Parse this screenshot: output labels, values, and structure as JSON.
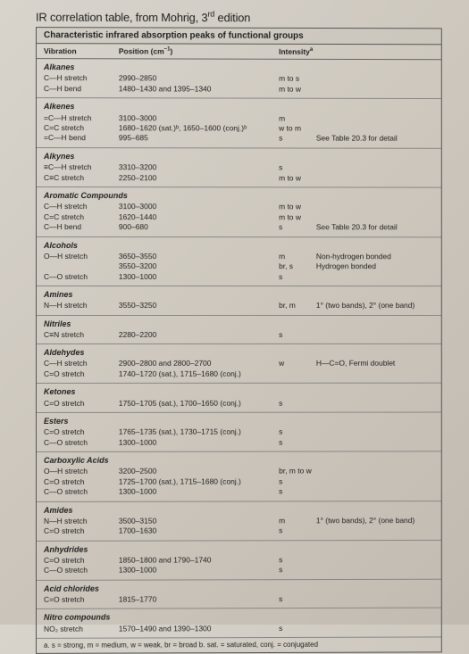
{
  "pageTitle": "IR correlation table, from Mohrig, 3",
  "pageTitleSuffix": "rd",
  "pageTitleEnd": " edition",
  "boxHeader": "Characteristic infrared absorption peaks of functional groups",
  "colVibration": "Vibration",
  "colPosition": "Position (cm",
  "colPositionSup": "−1",
  "colPositionEnd": ")",
  "colIntensity": "Intensity",
  "colIntensitySup": "a",
  "groups": [
    {
      "name": "Alkanes",
      "rows": [
        {
          "vib": "C—H stretch",
          "pos": "2990–2850",
          "int": "m to s",
          "note": ""
        },
        {
          "vib": "C—H bend",
          "pos": "1480–1430 and 1395–1340",
          "int": "m to w",
          "note": ""
        }
      ]
    },
    {
      "name": "Alkenes",
      "rows": [
        {
          "vib": "=C—H stretch",
          "pos": "3100–3000",
          "int": "m",
          "note": ""
        },
        {
          "vib": "C=C stretch",
          "pos": "1680–1620 (sat.)ᵇ, 1650–1600 (conj.)ᵇ",
          "int": "w to m",
          "note": ""
        },
        {
          "vib": "=C—H bend",
          "pos": "995–685",
          "int": "s",
          "note": "See Table 20.3 for detail"
        }
      ]
    },
    {
      "name": "Alkynes",
      "rows": [
        {
          "vib": "≡C—H stretch",
          "pos": "3310–3200",
          "int": "s",
          "note": ""
        },
        {
          "vib": "C≡C stretch",
          "pos": "2250–2100",
          "int": "m to w",
          "note": ""
        }
      ]
    },
    {
      "name": "Aromatic Compounds",
      "rows": [
        {
          "vib": "C—H stretch",
          "pos": "3100–3000",
          "int": "m to w",
          "note": ""
        },
        {
          "vib": "C=C stretch",
          "pos": "1620–1440",
          "int": "m to w",
          "note": ""
        },
        {
          "vib": "C—H bend",
          "pos": "900–680",
          "int": "s",
          "note": "See Table 20.3 for detail"
        }
      ]
    },
    {
      "name": "Alcohols",
      "rows": [
        {
          "vib": "O—H stretch",
          "pos": "3650–3550",
          "int": "m",
          "note": "Non-hydrogen bonded"
        },
        {
          "vib": "",
          "pos": "3550–3200",
          "int": "br, s",
          "note": "Hydrogen bonded"
        },
        {
          "vib": "C—O stretch",
          "pos": "1300–1000",
          "int": "s",
          "note": ""
        }
      ]
    },
    {
      "name": "Amines",
      "rows": [
        {
          "vib": "N—H stretch",
          "pos": "3550–3250",
          "int": "br, m",
          "note": "1° (two bands), 2° (one band)"
        }
      ]
    },
    {
      "name": "Nitriles",
      "rows": [
        {
          "vib": "C≡N stretch",
          "pos": "2280–2200",
          "int": "s",
          "note": ""
        }
      ]
    },
    {
      "name": "Aldehydes",
      "rows": [
        {
          "vib": "C—H stretch",
          "pos": "2900–2800 and 2800–2700",
          "int": "w",
          "note": "H—C=O, Fermi doublet"
        },
        {
          "vib": "C=O stretch",
          "pos": "1740–1720 (sat.), 1715–1680 (conj.)",
          "int": "",
          "note": ""
        }
      ]
    },
    {
      "name": "Ketones",
      "rows": [
        {
          "vib": "C=O stretch",
          "pos": "1750–1705 (sat.), 1700–1650 (conj.)",
          "int": "s",
          "note": ""
        }
      ]
    },
    {
      "name": "Esters",
      "rows": [
        {
          "vib": "C=O stretch",
          "pos": "1765–1735 (sat.), 1730–1715 (conj.)",
          "int": "s",
          "note": ""
        },
        {
          "vib": "C—O stretch",
          "pos": "1300–1000",
          "int": "s",
          "note": ""
        }
      ]
    },
    {
      "name": "Carboxylic Acids",
      "rows": [
        {
          "vib": "O—H stretch",
          "pos": "3200–2500",
          "int": "br, m to w",
          "note": ""
        },
        {
          "vib": "C=O stretch",
          "pos": "1725–1700 (sat.), 1715–1680 (conj.)",
          "int": "s",
          "note": ""
        },
        {
          "vib": "C—O stretch",
          "pos": "1300–1000",
          "int": "s",
          "note": ""
        }
      ]
    },
    {
      "name": "Amides",
      "rows": [
        {
          "vib": "N—H stretch",
          "pos": "3500–3150",
          "int": "m",
          "note": "1° (two bands), 2° (one band)"
        },
        {
          "vib": "C=O stretch",
          "pos": "1700–1630",
          "int": "s",
          "note": ""
        }
      ]
    },
    {
      "name": "Anhydrides",
      "rows": [
        {
          "vib": "C=O stretch",
          "pos": "1850–1800 and 1790–1740",
          "int": "s",
          "note": ""
        },
        {
          "vib": "C—O stretch",
          "pos": "1300–1000",
          "int": "s",
          "note": ""
        }
      ]
    },
    {
      "name": "Acid chlorides",
      "rows": [
        {
          "vib": "C=O stretch",
          "pos": "1815–1770",
          "int": "s",
          "note": ""
        }
      ]
    },
    {
      "name": "Nitro compounds",
      "rows": [
        {
          "vib": "NO₂ stretch",
          "pos": "1570–1490 and 1390–1300",
          "int": "s",
          "note": ""
        }
      ]
    }
  ],
  "footnoteA": "a. s = strong, m = medium, w = weak, br = broad   b. sat. = saturated, conj. = conjugated"
}
